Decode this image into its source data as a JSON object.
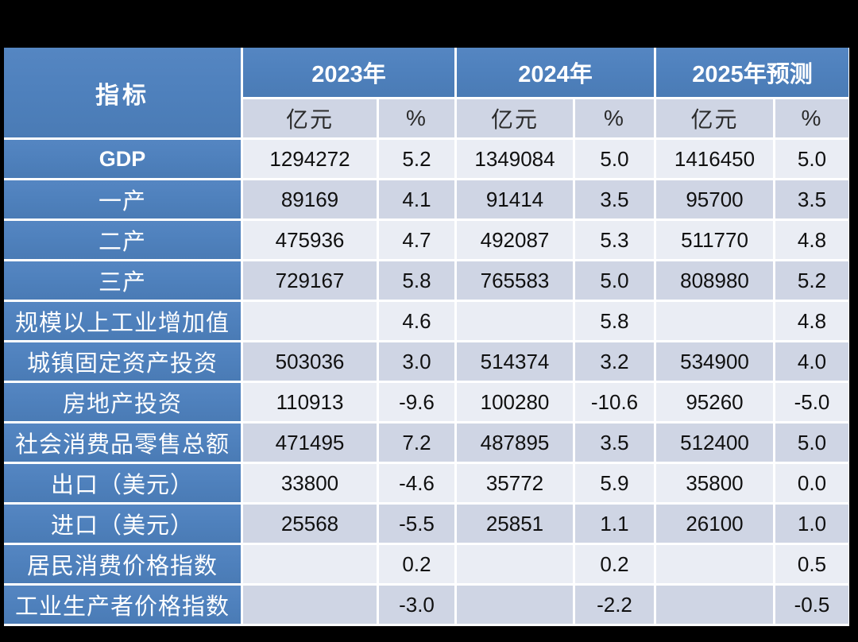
{
  "colors": {
    "page_background": "#000000",
    "header_blue": "#4f81bd",
    "band_dark": "#cfd5e4",
    "band_light": "#eaedf4",
    "gridline": "#ffffff",
    "header_text": "#ffffff",
    "number_text": "#101010"
  },
  "table": {
    "corner_header": "指标",
    "years": [
      {
        "label": "2023年",
        "units": [
          "亿元",
          "%"
        ]
      },
      {
        "label": "2024年",
        "units": [
          "亿元",
          "%"
        ]
      },
      {
        "label": "2025年预测",
        "units": [
          "亿元",
          "%"
        ]
      }
    ],
    "rows": [
      {
        "label": "GDP",
        "values": [
          "1294272",
          "5.2",
          "1349084",
          "5.0",
          "1416450",
          "5.0"
        ]
      },
      {
        "label": "一产",
        "values": [
          "89169",
          "4.1",
          "91414",
          "3.5",
          "95700",
          "3.5"
        ]
      },
      {
        "label": "二产",
        "values": [
          "475936",
          "4.7",
          "492087",
          "5.3",
          "511770",
          "4.8"
        ]
      },
      {
        "label": "三产",
        "values": [
          "729167",
          "5.8",
          "765583",
          "5.0",
          "808980",
          "5.2"
        ]
      },
      {
        "label": "规模以上工业增加值",
        "values": [
          "",
          "4.6",
          "",
          "5.8",
          "",
          "4.8"
        ]
      },
      {
        "label": "城镇固定资产投资",
        "values": [
          "503036",
          "3.0",
          "514374",
          "3.2",
          "534900",
          "4.0"
        ]
      },
      {
        "label": "房地产投资",
        "values": [
          "110913",
          "-9.6",
          "100280",
          "-10.6",
          "95260",
          "-5.0"
        ]
      },
      {
        "label": "社会消费品零售总额",
        "values": [
          "471495",
          "7.2",
          "487895",
          "3.5",
          "512400",
          "5.0"
        ]
      },
      {
        "label": "出口（美元）",
        "values": [
          "33800",
          "-4.6",
          "35772",
          "5.9",
          "35800",
          "0.0"
        ]
      },
      {
        "label": "进口（美元）",
        "values": [
          "25568",
          "-5.5",
          "25851",
          "1.1",
          "26100",
          "1.0"
        ]
      },
      {
        "label": "居民消费价格指数",
        "values": [
          "",
          "0.2",
          "",
          "0.2",
          "",
          "0.5"
        ]
      },
      {
        "label": "工业生产者价格指数",
        "values": [
          "",
          "-3.0",
          "",
          "-2.2",
          "",
          "-0.5"
        ]
      }
    ]
  }
}
